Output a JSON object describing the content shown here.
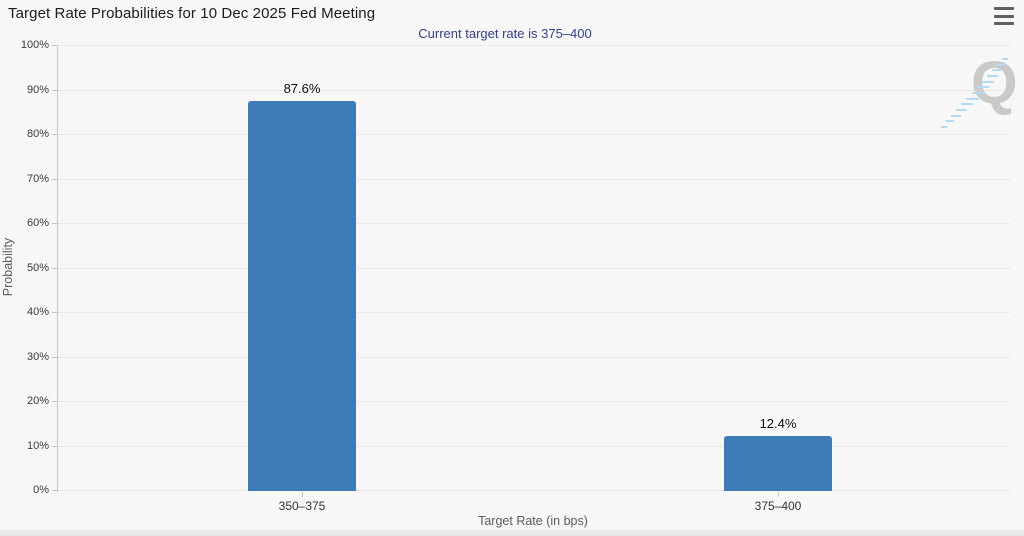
{
  "header": {
    "title": "Target Rate Probabilities for 10 Dec 2025 Fed Meeting",
    "menu_icon": "hamburger-icon"
  },
  "watermark": {
    "letter": "Q"
  },
  "chart_data": {
    "type": "bar",
    "title": "Target Rate Probabilities for 10 Dec 2025 Fed Meeting",
    "subtitle": "Current target rate is 375–400",
    "categories": [
      "350–375",
      "375–400"
    ],
    "values": [
      87.6,
      12.4
    ],
    "value_labels": [
      "87.6%",
      "12.4%"
    ],
    "xlabel": "Target Rate (in bps)",
    "ylabel": "Probability",
    "ylim": [
      0,
      100
    ],
    "ytick_step": 10,
    "ytick_suffix": "%",
    "grid": "dotted-horizontal",
    "legend": "none",
    "colors": {
      "bar": "#3e7cb8",
      "subtitle": "#32418f",
      "grid": "#dcdcdc",
      "axis": "#c6c6c6",
      "value_label": "#0d0d0d",
      "category_label": "#333333",
      "tick_label": "#3a3a3a",
      "axis_title": "#5c5c5c",
      "watermark": "#c9c9c9",
      "watermark_accent": "#b5dbf2"
    }
  }
}
